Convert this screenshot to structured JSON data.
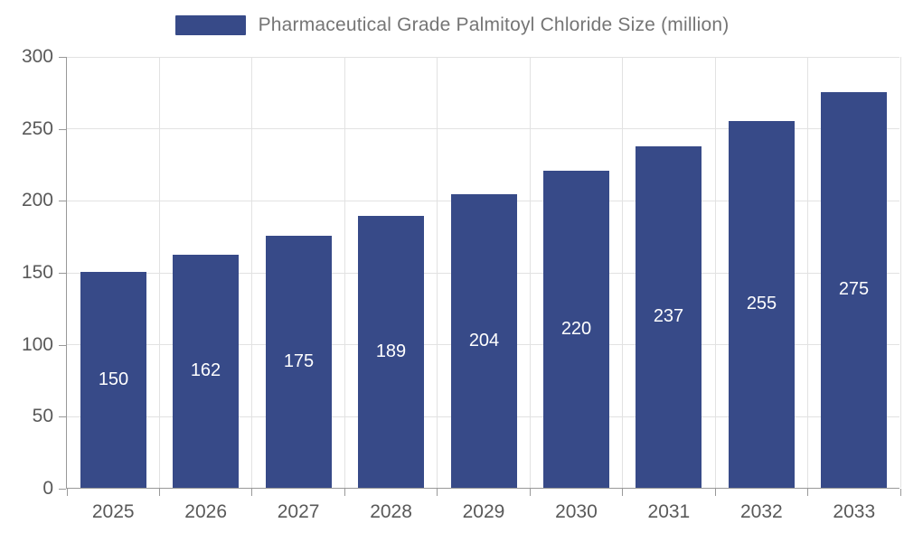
{
  "legend": {
    "label": "Pharmaceutical Grade Palmitoyl Chloride Size (million)"
  },
  "chart_data": {
    "type": "bar",
    "title": "Pharmaceutical Grade Palmitoyl Chloride Size (million)",
    "categories": [
      "2025",
      "2026",
      "2027",
      "2028",
      "2029",
      "2030",
      "2031",
      "2032",
      "2033"
    ],
    "values": [
      150,
      162,
      175,
      189,
      204,
      220,
      237,
      255,
      275
    ],
    "xlabel": "",
    "ylabel": "",
    "ylim": [
      0,
      300
    ],
    "ytick_step": 50,
    "yticks": [
      0,
      50,
      100,
      150,
      200,
      250,
      300
    ],
    "grid": true,
    "legend_position": "top-center",
    "bar_labels_inside": true,
    "colors": {
      "bar": "#374a88",
      "bar_label": "#ffffff",
      "grid": "#e2e2e2",
      "axis": "#999999",
      "tick_label": "#595959",
      "legend_text": "#757575",
      "background": "#ffffff"
    }
  }
}
